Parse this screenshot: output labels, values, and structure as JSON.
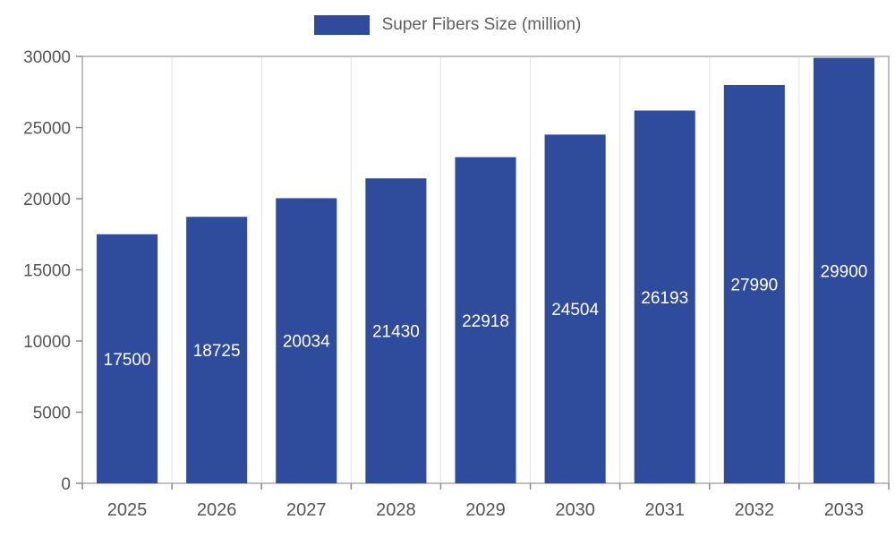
{
  "chart_data": {
    "type": "bar",
    "title": "",
    "categories": [
      "2025",
      "2026",
      "2027",
      "2028",
      "2029",
      "2030",
      "2031",
      "2032",
      "2033"
    ],
    "series": [
      {
        "name": "Super Fibers Size (million)",
        "values": [
          17500,
          18725,
          20034,
          21430,
          22918,
          24504,
          26193,
          27990,
          29900
        ]
      }
    ],
    "xlabel": "",
    "ylabel": "",
    "ylim": [
      0,
      30000
    ],
    "yticks": [
      0,
      5000,
      10000,
      15000,
      20000,
      25000,
      30000
    ],
    "bar_color": "#2F4B9B",
    "value_label_color": "#ffffff",
    "axis_text_color": "#555555",
    "grid_line_color": "#e2e2e2",
    "border_color": "#aaaaaa",
    "tick_color": "#888888",
    "grid": "vertical-splitlines",
    "legend_position": "top-center",
    "value_labels": "inside-center"
  }
}
